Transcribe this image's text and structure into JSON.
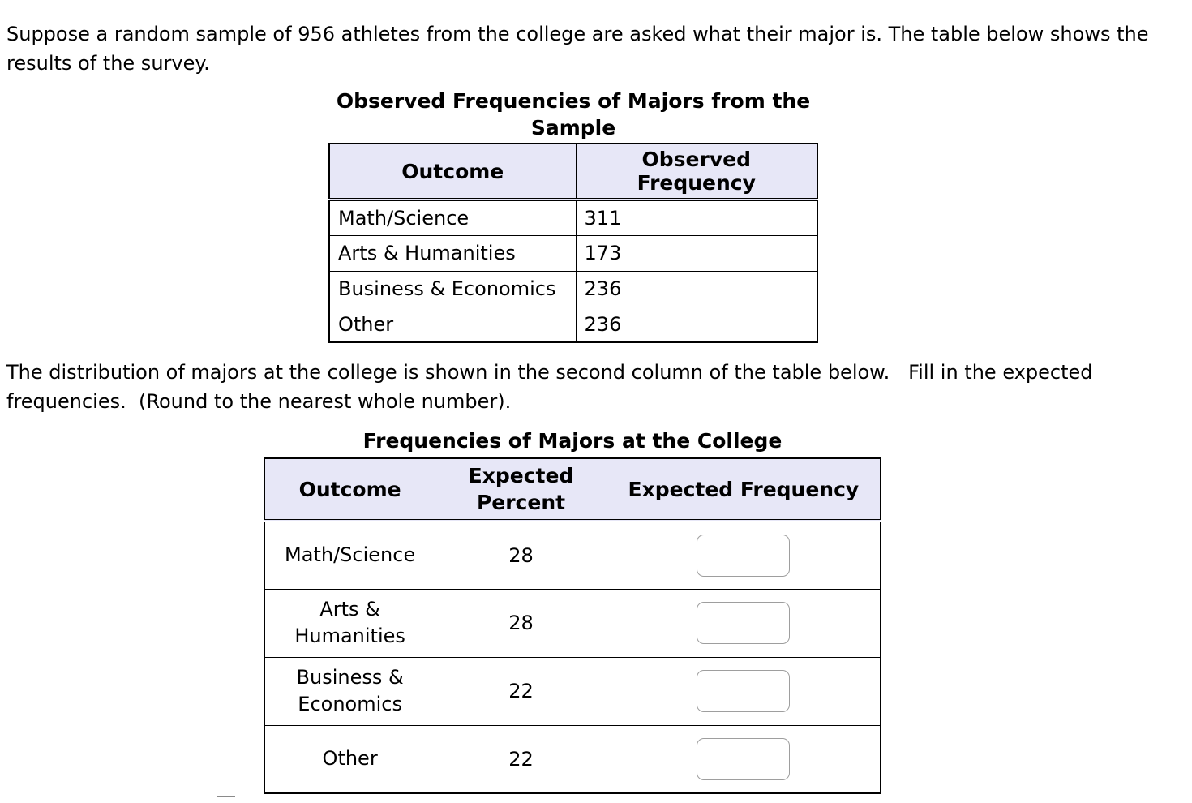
{
  "intro_text": "Suppose a random sample of 956 athletes from the college are asked what their major is. The table below shows the results of the survey.",
  "observed_table": {
    "title_line1": "Observed Frequencies of Majors from the",
    "title_line2": "Sample",
    "col_headers": [
      "Outcome",
      "Observed Frequency"
    ],
    "rows": [
      {
        "outcome": "Math/Science",
        "frequency": "311"
      },
      {
        "outcome": "Arts & Humanities",
        "frequency": "173"
      },
      {
        "outcome": "Business & Economics",
        "frequency": "236"
      },
      {
        "outcome": "Other",
        "frequency": "236"
      }
    ]
  },
  "instruction_text": "The distribution of majors at the college is shown in the second column of the table below.   Fill in the expected frequencies.  (Round to the nearest whole number).",
  "expected_table": {
    "title": "Frequencies of Majors at the College",
    "col_headers": [
      "Outcome",
      "Expected Percent",
      "Expected Frequency"
    ],
    "rows": [
      {
        "outcome": "Math/Science",
        "percent": "28",
        "input_value": ""
      },
      {
        "outcome": "Arts & Humanities",
        "percent": "28",
        "input_value": ""
      },
      {
        "outcome": "Business & Economics",
        "percent": "22",
        "input_value": ""
      },
      {
        "outcome": "Other",
        "percent": "22",
        "input_value": ""
      }
    ]
  },
  "colors": {
    "header_bg": "#e7e7f7",
    "table_border": "#000000",
    "input_border": "#9e9e9e"
  }
}
